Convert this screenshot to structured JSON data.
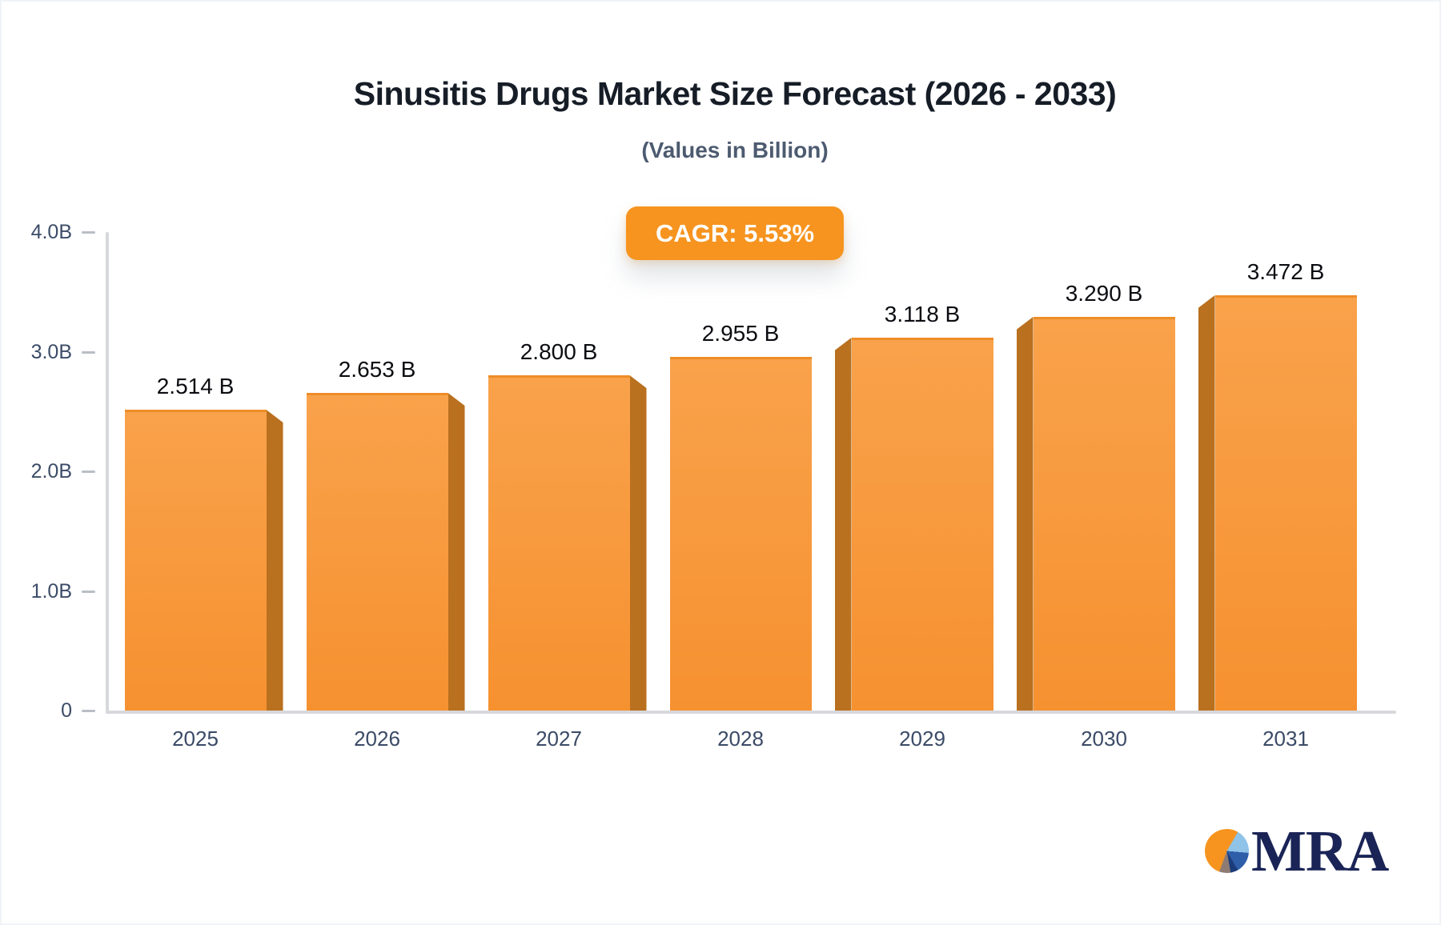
{
  "chart_data": {
    "type": "bar",
    "title": "Sinusitis Drugs Market Size Forecast (2026 - 2033)",
    "subtitle": "(Values in Billion)",
    "cagr_text": "CAGR: 5.53%",
    "categories": [
      "2025",
      "2026",
      "2027",
      "2028",
      "2029",
      "2030",
      "2031"
    ],
    "values": [
      2.514,
      2.653,
      2.8,
      2.955,
      3.118,
      3.29,
      3.472
    ],
    "value_labels": [
      "2.514 B",
      "2.653 B",
      "2.800 B",
      "2.955 B",
      "3.118 B",
      "3.290 B",
      "3.472 B"
    ],
    "y_ticks": [
      {
        "label": "4.0B",
        "value": 4.0
      },
      {
        "label": "3.0B",
        "value": 3.0
      },
      {
        "label": "2.0B",
        "value": 2.0
      },
      {
        "label": "1.0B",
        "value": 1.0
      },
      {
        "label": "0",
        "value": 0.0
      }
    ],
    "ylim": [
      0,
      4.0
    ],
    "unit": "B",
    "grid": false,
    "legend": false,
    "badge_color": "#f6941f",
    "bar_face_top": "#f9a24b",
    "bar_face_bottom": "#f69130",
    "bar_edge_color": "#ee8d28",
    "bar_side_color": "#b9701f",
    "axis_color": "#d6d8dc",
    "tick_color": "#b9bec6",
    "axis_label_color": "#3c4c68",
    "value_label_color": "#0b0d11",
    "title_color": "#161d27",
    "subtitle_color": "#4d5b70"
  },
  "logo": {
    "text": "MRA",
    "text_color": "#1a2456",
    "pie_colors": {
      "orange": "#f6941f",
      "light_blue": "#8fc3e8",
      "blue": "#2f5ea9",
      "navy": "#1b3c7a",
      "gray": "#8d7b74"
    }
  }
}
